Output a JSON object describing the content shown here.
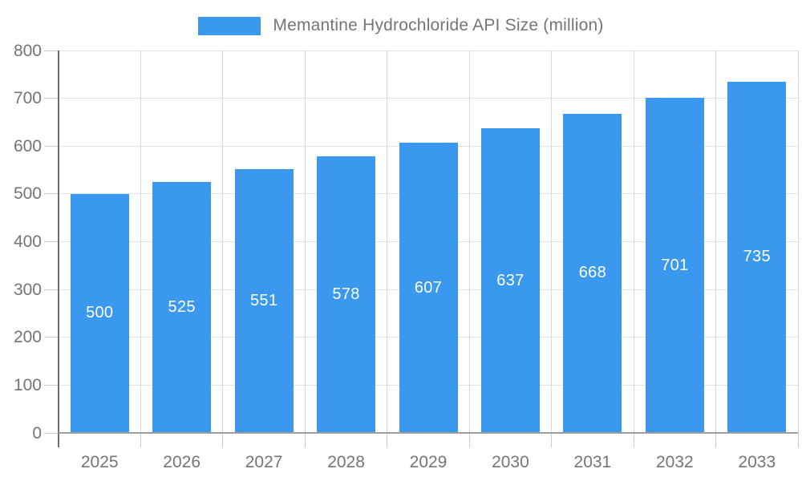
{
  "legend": {
    "label": "Memantine Hydrochloride API Size (million)"
  },
  "chart_data": {
    "type": "bar",
    "title": "Memantine Hydrochloride API Size (million)",
    "categories": [
      "2025",
      "2026",
      "2027",
      "2028",
      "2029",
      "2030",
      "2031",
      "2032",
      "2033"
    ],
    "series": [
      {
        "name": "Memantine Hydrochloride API Size (million)",
        "values": [
          500,
          525,
          551,
          578,
          607,
          637,
          668,
          701,
          735
        ]
      }
    ],
    "data_labels": [
      "500",
      "525",
      "551",
      "578",
      "607",
      "637",
      "668",
      "701",
      "735"
    ],
    "xlabel": "",
    "ylabel": "",
    "ylim": [
      0,
      800
    ],
    "ytick_step": 100,
    "grid": "both",
    "legend_position": "top",
    "colors": {
      "bar": "#3A99EE",
      "bar_label": "#ffffff",
      "axis_text": "#757575",
      "gridline": "#e3e3e3",
      "y_axis_line": "#6e6e6e",
      "x_axis_line": "#9e9e9e"
    }
  }
}
